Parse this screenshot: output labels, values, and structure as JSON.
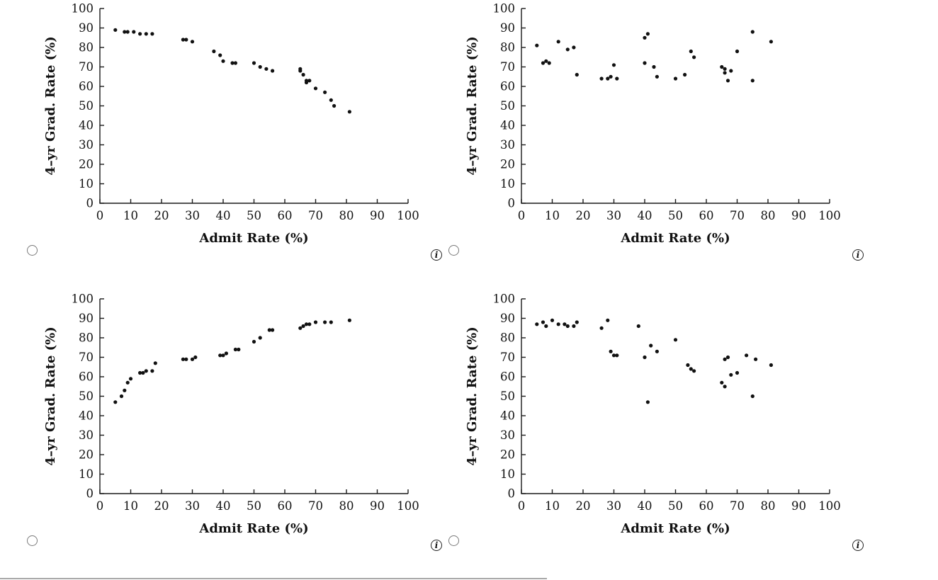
{
  "page": {
    "background": "#ffffff"
  },
  "icons": {
    "info_label": "i",
    "radio_style": "radio-unchecked"
  },
  "options": [
    {
      "key": "A",
      "position": "top-left",
      "selected": false
    },
    {
      "key": "B",
      "position": "top-right",
      "selected": false
    },
    {
      "key": "C",
      "position": "bottom-left",
      "selected": false
    },
    {
      "key": "D",
      "position": "bottom-right",
      "selected": false
    }
  ],
  "chart_data": [
    {
      "type": "scatter",
      "title": "",
      "xlabel": "Admit Rate (%)",
      "ylabel": "4–yr Grad. Rate (%)",
      "xlim": [
        0,
        100
      ],
      "ylim": [
        0,
        100
      ],
      "xticks": [
        0,
        10,
        20,
        30,
        40,
        50,
        60,
        70,
        80,
        90,
        100
      ],
      "yticks": [
        0,
        10,
        20,
        30,
        40,
        50,
        60,
        70,
        80,
        90,
        100
      ],
      "grid": false,
      "marker": "filled-circle",
      "marker_color": "#111111",
      "trend": "negative association",
      "points": [
        [
          5,
          89
        ],
        [
          8,
          88
        ],
        [
          9,
          88
        ],
        [
          11,
          88
        ],
        [
          13,
          87
        ],
        [
          15,
          87
        ],
        [
          17,
          87
        ],
        [
          27,
          84
        ],
        [
          28,
          84
        ],
        [
          30,
          83
        ],
        [
          37,
          78
        ],
        [
          39,
          76
        ],
        [
          40,
          73
        ],
        [
          43,
          72
        ],
        [
          44,
          72
        ],
        [
          50,
          72
        ],
        [
          52,
          70
        ],
        [
          54,
          69
        ],
        [
          56,
          68
        ],
        [
          65,
          69
        ],
        [
          65,
          68
        ],
        [
          66,
          66
        ],
        [
          67,
          63
        ],
        [
          67,
          62
        ],
        [
          68,
          63
        ],
        [
          70,
          59
        ],
        [
          73,
          57
        ],
        [
          75,
          53
        ],
        [
          76,
          50
        ],
        [
          81,
          47
        ]
      ]
    },
    {
      "type": "scatter",
      "title": "",
      "xlabel": "Admit Rate (%)",
      "ylabel": "4–yr Grad. Rate (%)",
      "xlim": [
        0,
        100
      ],
      "ylim": [
        0,
        100
      ],
      "xticks": [
        0,
        10,
        20,
        30,
        40,
        50,
        60,
        70,
        80,
        90,
        100
      ],
      "yticks": [
        0,
        10,
        20,
        30,
        40,
        50,
        60,
        70,
        80,
        90,
        100
      ],
      "grid": false,
      "marker": "filled-circle",
      "marker_color": "#111111",
      "trend": "no association",
      "points": [
        [
          5,
          81
        ],
        [
          7,
          72
        ],
        [
          8,
          73
        ],
        [
          9,
          72
        ],
        [
          12,
          83
        ],
        [
          15,
          79
        ],
        [
          17,
          80
        ],
        [
          18,
          66
        ],
        [
          26,
          64
        ],
        [
          28,
          64
        ],
        [
          29,
          65
        ],
        [
          30,
          71
        ],
        [
          31,
          64
        ],
        [
          40,
          85
        ],
        [
          41,
          87
        ],
        [
          40,
          72
        ],
        [
          43,
          70
        ],
        [
          44,
          65
        ],
        [
          50,
          64
        ],
        [
          53,
          66
        ],
        [
          55,
          78
        ],
        [
          56,
          75
        ],
        [
          65,
          70
        ],
        [
          66,
          69
        ],
        [
          66,
          67
        ],
        [
          67,
          63
        ],
        [
          68,
          68
        ],
        [
          70,
          78
        ],
        [
          75,
          88
        ],
        [
          75,
          63
        ],
        [
          81,
          83
        ]
      ]
    },
    {
      "type": "scatter",
      "title": "",
      "xlabel": "Admit Rate (%)",
      "ylabel": "4–yr Grad. Rate (%)",
      "xlim": [
        0,
        100
      ],
      "ylim": [
        0,
        100
      ],
      "xticks": [
        0,
        10,
        20,
        30,
        40,
        50,
        60,
        70,
        80,
        90,
        100
      ],
      "yticks": [
        0,
        10,
        20,
        30,
        40,
        50,
        60,
        70,
        80,
        90,
        100
      ],
      "grid": false,
      "marker": "filled-circle",
      "marker_color": "#111111",
      "trend": "positive association",
      "points": [
        [
          5,
          47
        ],
        [
          7,
          50
        ],
        [
          8,
          53
        ],
        [
          9,
          57
        ],
        [
          10,
          59
        ],
        [
          13,
          62
        ],
        [
          14,
          62
        ],
        [
          15,
          63
        ],
        [
          17,
          63
        ],
        [
          18,
          67
        ],
        [
          27,
          69
        ],
        [
          28,
          69
        ],
        [
          30,
          69
        ],
        [
          31,
          70
        ],
        [
          39,
          71
        ],
        [
          40,
          71
        ],
        [
          41,
          72
        ],
        [
          44,
          74
        ],
        [
          45,
          74
        ],
        [
          50,
          78
        ],
        [
          52,
          80
        ],
        [
          55,
          84
        ],
        [
          56,
          84
        ],
        [
          65,
          85
        ],
        [
          66,
          86
        ],
        [
          67,
          87
        ],
        [
          68,
          87
        ],
        [
          70,
          88
        ],
        [
          73,
          88
        ],
        [
          75,
          88
        ],
        [
          81,
          89
        ]
      ]
    },
    {
      "type": "scatter",
      "title": "",
      "xlabel": "Admit Rate (%)",
      "ylabel": "4–yr Grad. Rate (%)",
      "xlim": [
        0,
        100
      ],
      "ylim": [
        0,
        100
      ],
      "xticks": [
        0,
        10,
        20,
        30,
        40,
        50,
        60,
        70,
        80,
        90,
        100
      ],
      "yticks": [
        0,
        10,
        20,
        30,
        40,
        50,
        60,
        70,
        80,
        90,
        100
      ],
      "grid": false,
      "marker": "filled-circle",
      "marker_color": "#111111",
      "trend": "weak negative association",
      "points": [
        [
          5,
          87
        ],
        [
          7,
          88
        ],
        [
          8,
          86
        ],
        [
          10,
          89
        ],
        [
          12,
          87
        ],
        [
          14,
          87
        ],
        [
          15,
          86
        ],
        [
          17,
          86
        ],
        [
          18,
          88
        ],
        [
          26,
          85
        ],
        [
          28,
          89
        ],
        [
          29,
          73
        ],
        [
          30,
          71
        ],
        [
          31,
          71
        ],
        [
          38,
          86
        ],
        [
          40,
          70
        ],
        [
          41,
          47
        ],
        [
          42,
          76
        ],
        [
          44,
          73
        ],
        [
          50,
          79
        ],
        [
          54,
          66
        ],
        [
          55,
          64
        ],
        [
          56,
          63
        ],
        [
          65,
          57
        ],
        [
          66,
          55
        ],
        [
          66,
          69
        ],
        [
          67,
          70
        ],
        [
          68,
          61
        ],
        [
          70,
          62
        ],
        [
          73,
          71
        ],
        [
          75,
          50
        ],
        [
          76,
          69
        ],
        [
          81,
          66
        ]
      ]
    }
  ]
}
